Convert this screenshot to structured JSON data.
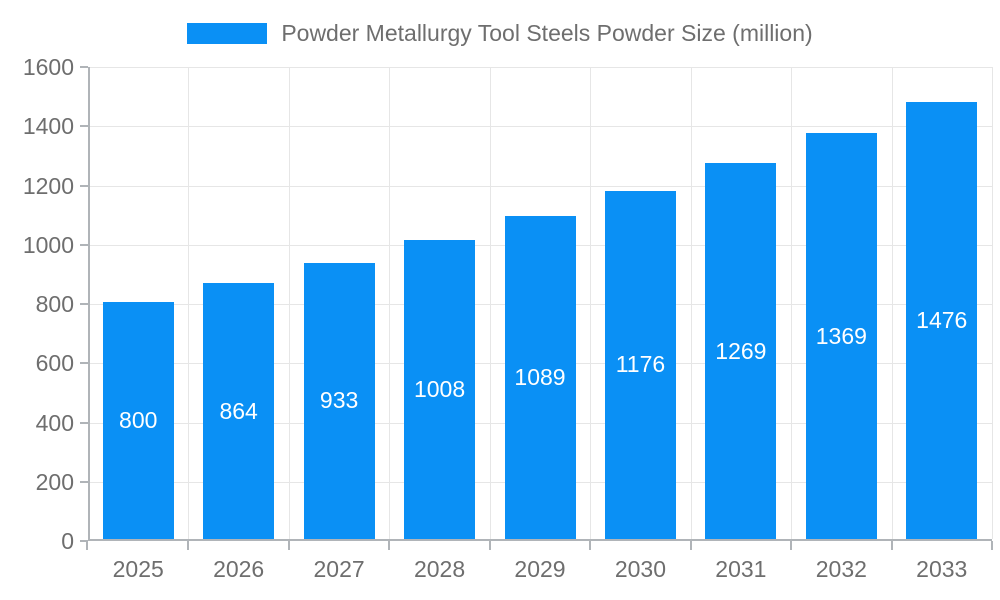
{
  "legend": {
    "label": "Powder Metallurgy Tool Steels Powder Size (million)"
  },
  "chart_data": {
    "type": "bar",
    "title": "Powder Metallurgy Tool Steels Powder Size (million)",
    "categories": [
      "2025",
      "2026",
      "2027",
      "2028",
      "2029",
      "2030",
      "2031",
      "2032",
      "2033"
    ],
    "series": [
      {
        "name": "Powder Metallurgy Tool Steels Powder Size (million)",
        "values": [
          800,
          864,
          933,
          1008,
          1089,
          1176,
          1269,
          1369,
          1476
        ]
      }
    ],
    "xlabel": "",
    "ylabel": "",
    "ylim": [
      0,
      1600
    ],
    "yticks": [
      0,
      200,
      400,
      600,
      800,
      1000,
      1200,
      1400,
      1600
    ],
    "grid": true,
    "legend_position": "top",
    "bar_label_position": "inside-center",
    "colors": {
      "bar": "#0a90f5",
      "bar_label": "#ffffff",
      "axis_line": "#b0b4b8",
      "gridline": "#e6e6e6",
      "tick_text": "#6e6e6e",
      "legend_text": "#6e6e6e",
      "background": "#ffffff"
    }
  }
}
